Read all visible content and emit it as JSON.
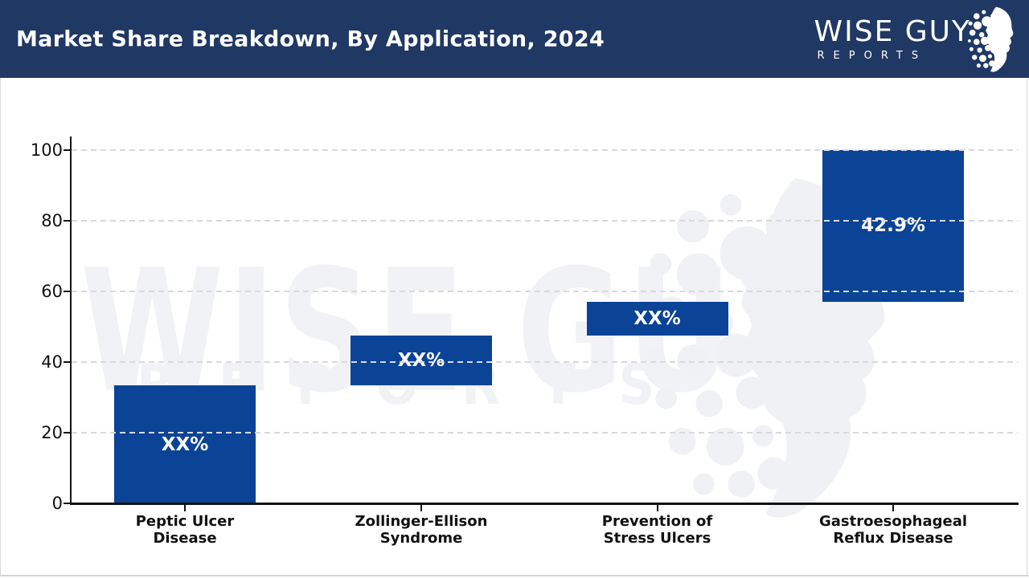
{
  "header": {
    "title": "Market Share Breakdown, By Application, 2024",
    "logo": {
      "name": "WISE GUY",
      "subtitle": "REPORTS"
    }
  },
  "watermark": {
    "name": "WISE GUY",
    "subtitle": "REPORTS"
  },
  "colors": {
    "header_bg": "#203864",
    "bar_fill": "#0b4397",
    "grid_line": "#d9d9d9",
    "axis": "#111111",
    "bar_label_text": "#ffffff",
    "title_text": "#ffffff",
    "watermark": "#f1f2f5"
  },
  "chart_data": {
    "type": "bar",
    "subtype": "waterfall",
    "title": "Market Share Breakdown, By Application, 2024",
    "categories": [
      "Peptic Ulcer\nDisease",
      "Zollinger-Ellison\nSyndrome",
      "Prevention of\nStress Ulcers",
      "Gastroesophageal\nReflux Disease"
    ],
    "values": [
      33.3,
      14.3,
      9.5,
      42.9
    ],
    "segments": [
      {
        "category": "Peptic Ulcer Disease",
        "start": 0,
        "end": 33.3,
        "label": "XX%"
      },
      {
        "category": "Zollinger-Ellison Syndrome",
        "start": 33.3,
        "end": 47.6,
        "label": "XX%"
      },
      {
        "category": "Prevention of Stress Ulcers",
        "start": 47.6,
        "end": 57.1,
        "label": "XX%"
      },
      {
        "category": "Gastroesophageal Reflux Disease",
        "start": 57.1,
        "end": 100,
        "label": "42.9%"
      }
    ],
    "bar_labels": [
      "XX%",
      "XX%",
      "XX%",
      "42.9%"
    ],
    "xlabel": "",
    "ylabel": "",
    "ylim": [
      0,
      100
    ],
    "yticks": [
      0,
      20,
      40,
      60,
      80,
      100
    ],
    "grid": "horizontal-dashed",
    "legend": "none"
  }
}
